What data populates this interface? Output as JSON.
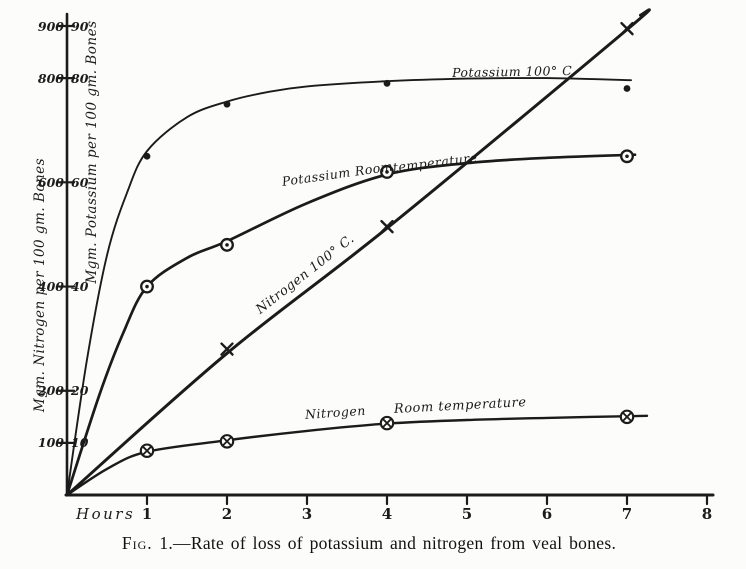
{
  "figure": {
    "caption_prefix": "Fig.",
    "caption_rest": " 1.—Rate of loss of potassium and nitrogen from veal bones."
  },
  "axes": {
    "x_label": "Hours",
    "nitrogen_axis_title": "Mgm. Nitrogen per 100 gm. Bones",
    "potassium_axis_title": "Mgm. Potassium per 100 gm. Bones"
  },
  "labels": {
    "potassium_100": "Potassium  100° C.",
    "potassium_rt_left": "Potassium  Room",
    "potassium_rt_right": "temperature",
    "nitrogen_100": "Nitrogen  100° C.",
    "nitrogen_rt_left": "Nitrogen",
    "nitrogen_rt_right": "Room  temperature"
  },
  "chart_data": {
    "type": "line",
    "title": "Rate of loss of potassium and nitrogen from veal bones",
    "xlabel": "Hours",
    "x_range": [
      0,
      8
    ],
    "x_ticks": [
      1,
      2,
      3,
      4,
      5,
      6,
      7,
      8
    ],
    "grid": false,
    "ink_color": "#1b1b1b",
    "paper_color": "#fcfcfa",
    "y_axes": [
      {
        "id": "nitrogen",
        "label": "Mgm. Nitrogen per 100 gm. Bones",
        "range": [
          0,
          900
        ],
        "ticks": [
          100,
          200,
          400,
          600,
          800,
          900
        ]
      },
      {
        "id": "potassium",
        "label": "Mgm. Potassium per 100 gm. Bones",
        "range": [
          0,
          90
        ],
        "ticks": [
          10,
          20,
          40,
          60,
          80,
          90
        ]
      }
    ],
    "y_tick_pairs": [
      {
        "nitrogen": "100",
        "potassium": "10",
        "k_value": 10
      },
      {
        "nitrogen": "200",
        "potassium": "20",
        "k_value": 20
      },
      {
        "nitrogen": "400",
        "potassium": "40",
        "k_value": 40
      },
      {
        "nitrogen": "600",
        "potassium": "60",
        "k_value": 60
      },
      {
        "nitrogen": "800",
        "potassium": "80",
        "k_value": 80
      },
      {
        "nitrogen": "900",
        "potassium": "90",
        "k_value": 90
      }
    ],
    "series": [
      {
        "name": "Potassium 100° C.",
        "axis": "potassium",
        "marker": "dot",
        "stroke_width": 1.9,
        "points": [
          [
            1,
            65
          ],
          [
            2,
            75
          ],
          [
            4,
            79
          ],
          [
            7,
            78
          ]
        ],
        "curve": [
          [
            0,
            0
          ],
          [
            0.25,
            26
          ],
          [
            0.5,
            46
          ],
          [
            0.75,
            58
          ],
          [
            1,
            66
          ],
          [
            1.5,
            72.5
          ],
          [
            2,
            75.5
          ],
          [
            2.5,
            77.3
          ],
          [
            3,
            78.4
          ],
          [
            4,
            79.4
          ],
          [
            5,
            79.9
          ],
          [
            6,
            80
          ],
          [
            7.05,
            79.6
          ]
        ]
      },
      {
        "name": "Potassium Room temperature",
        "axis": "potassium",
        "marker": "circle-dot",
        "stroke_width": 2.7,
        "points": [
          [
            1,
            40
          ],
          [
            2,
            48
          ],
          [
            4,
            62
          ],
          [
            7,
            65
          ]
        ],
        "curve": [
          [
            0,
            0
          ],
          [
            0.4,
            19
          ],
          [
            0.7,
            31
          ],
          [
            1,
            40
          ],
          [
            1.5,
            45.5
          ],
          [
            2,
            48.7
          ],
          [
            3,
            56
          ],
          [
            4,
            61.5
          ],
          [
            5,
            63.7
          ],
          [
            6,
            64.7
          ],
          [
            7.1,
            65.3
          ]
        ]
      },
      {
        "name": "Nitrogen 100° C.",
        "axis": "nitrogen",
        "marker": "x",
        "stroke_width": 3.0,
        "points": [
          [
            2,
            280
          ],
          [
            4,
            515
          ],
          [
            7,
            895
          ]
        ],
        "curve": [
          [
            0,
            0
          ],
          [
            2,
            272
          ],
          [
            4,
            512
          ],
          [
            7,
            893
          ],
          [
            7.17,
            921
          ]
        ]
      },
      {
        "name": "Nitrogen Room temperature",
        "axis": "nitrogen",
        "marker": "circle-x",
        "stroke_width": 2.4,
        "points": [
          [
            1,
            85
          ],
          [
            2,
            103
          ],
          [
            4,
            138
          ],
          [
            7,
            150
          ]
        ],
        "curve": [
          [
            0,
            0
          ],
          [
            0.5,
            50
          ],
          [
            1,
            83
          ],
          [
            2,
            105
          ],
          [
            3,
            123
          ],
          [
            4,
            137
          ],
          [
            5,
            144
          ],
          [
            6,
            148
          ],
          [
            7.25,
            152
          ]
        ]
      }
    ]
  }
}
